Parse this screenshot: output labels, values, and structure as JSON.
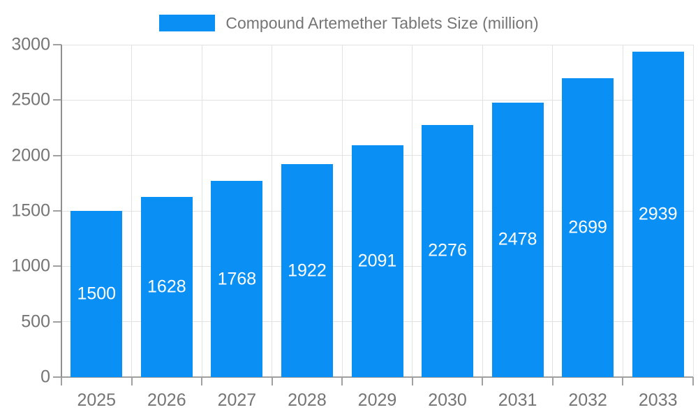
{
  "legend": {
    "label": "Compound Artemether Tablets Size (million)"
  },
  "colors": {
    "bar": "#0a8ff5",
    "axis_text": "#757575",
    "gridline": "#e2e2e2",
    "axis_line": "#9a9a9a",
    "value_label": "#ffffff"
  },
  "chart_data": {
    "type": "bar",
    "title": "Compound Artemether Tablets Size (million)",
    "categories": [
      "2025",
      "2026",
      "2027",
      "2028",
      "2029",
      "2030",
      "2031",
      "2032",
      "2033"
    ],
    "values": [
      1500,
      1628,
      1768,
      1922,
      2091,
      2276,
      2478,
      2699,
      2939
    ],
    "xlabel": "",
    "ylabel": "",
    "ylim": [
      0,
      3000
    ],
    "yticks": [
      0,
      500,
      1000,
      1500,
      2000,
      2500,
      3000
    ],
    "grid": true,
    "legend_position": "top-center",
    "value_labels": "inside-center"
  }
}
